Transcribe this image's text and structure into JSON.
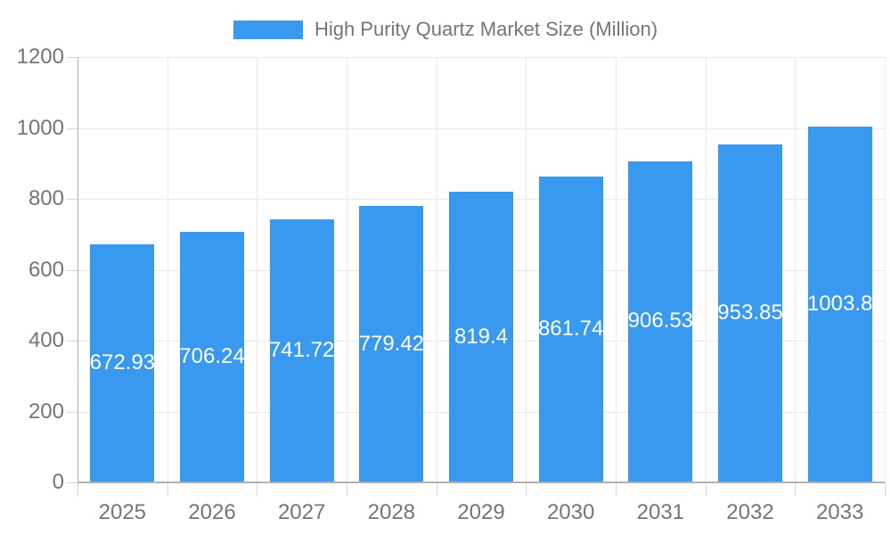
{
  "chart_data": {
    "type": "bar",
    "title": "High Purity Quartz Market Size (Million)",
    "legend": {
      "label": "High Purity Quartz Market Size (Million)",
      "position": "top"
    },
    "categories": [
      "2025",
      "2026",
      "2027",
      "2028",
      "2029",
      "2030",
      "2031",
      "2032",
      "2033"
    ],
    "series": [
      {
        "name": "High Purity Quartz Market Size (Million)",
        "values": [
          672.93,
          706.24,
          741.72,
          779.42,
          819.4,
          861.74,
          906.53,
          953.85,
          1003.8
        ],
        "value_labels": [
          "672.93",
          "706.24",
          "741.72",
          "779.42",
          "819.4",
          "861.74",
          "906.53",
          "953.85",
          "1003.8"
        ]
      }
    ],
    "xlabel": "",
    "ylabel": "",
    "ylim": [
      0,
      1200
    ],
    "yticks": [
      0,
      200,
      400,
      600,
      800,
      1000,
      1200
    ],
    "ytick_labels": [
      "0",
      "200",
      "400",
      "600",
      "800",
      "1000",
      "1200"
    ],
    "grid": true,
    "colors": {
      "bar": "#3999ee",
      "gridline": "#e9e9e9",
      "tick": "#d6d6d6",
      "axis_line": "#b0b0b0",
      "axis_text": "#757575",
      "title_text": "#757575",
      "value_text": "#ffffff",
      "background": "#ffffff"
    }
  }
}
